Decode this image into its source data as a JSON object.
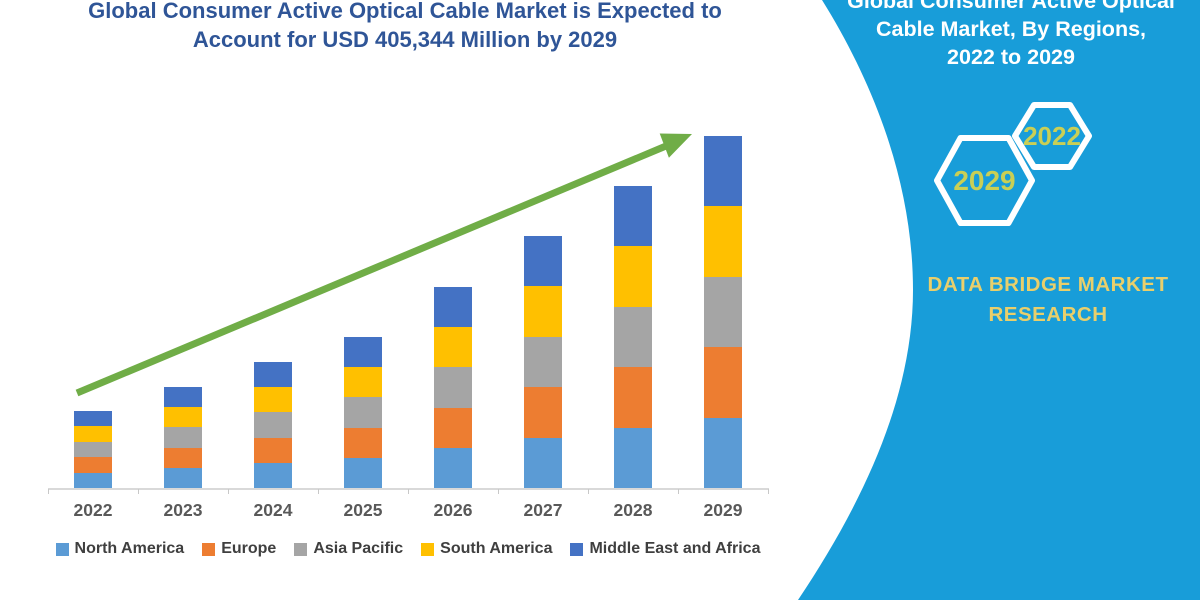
{
  "chart": {
    "title_lines": [
      "Global Consumer Active Optical Cable Market is Expected to",
      "Account for USD 405,344 Million by 2029"
    ]
  },
  "chart_data": {
    "type": "bar",
    "stacked": true,
    "title": "Global Consumer Active Optical Cable Market is Expected to Account for USD 405,344 Million by 2029",
    "categories": [
      "2022",
      "2023",
      "2024",
      "2025",
      "2026",
      "2027",
      "2028",
      "2029"
    ],
    "series": [
      {
        "name": "North America",
        "color": "#5B9BD5",
        "values": [
          17740,
          23260,
          29020,
          34780,
          46280,
          58040,
          69540,
          81069
        ]
      },
      {
        "name": "Europe",
        "color": "#ED7D31",
        "values": [
          17740,
          23260,
          29020,
          34780,
          46280,
          58040,
          69540,
          81069
        ]
      },
      {
        "name": "Asia Pacific",
        "color": "#A5A5A5",
        "values": [
          17740,
          23260,
          29020,
          34780,
          46280,
          58040,
          69540,
          81069
        ]
      },
      {
        "name": "South America",
        "color": "#FFC000",
        "values": [
          17740,
          23260,
          29020,
          34780,
          46280,
          58040,
          69540,
          81069
        ]
      },
      {
        "name": "Middle East and Africa",
        "color": "#4472C4",
        "values": [
          17740,
          23260,
          29020,
          34780,
          46280,
          58040,
          69540,
          81069
        ]
      }
    ],
    "totals": [
      88700,
      116300,
      145100,
      173900,
      231400,
      290200,
      347700,
      405345
    ],
    "units": "USD Million (estimated from bar heights; 2029 total anchored to USD 405,344 Million stated in title)",
    "xlabel": "",
    "ylabel": "",
    "ylim": [
      0,
      405345
    ],
    "grid": false,
    "legend_position": "bottom",
    "annotations": [
      "green growth trend arrow from 2022 bar to 2029 bar top"
    ]
  },
  "panel": {
    "title_lines": [
      "Global Consumer Active Optical",
      "Cable Market, By Regions,",
      "2022 to 2029"
    ],
    "hexagons": [
      {
        "label": "2029"
      },
      {
        "label": "2022"
      }
    ],
    "brand": "DATA BRIDGE MARKET RESEARCH",
    "colors": {
      "background": "#189DD9",
      "title_text": "#FFFFFF",
      "hexagon_outline": "#FFFFFF",
      "hexagon_text": "#C9CF55",
      "brand_text": "#E9CF6B"
    }
  },
  "colors": {
    "chart_title": "#2F5597",
    "arrow": "#70AD47",
    "axis_line": "#D9D9D9",
    "year_labels": "#595959",
    "legend_text": "#3F3F3F"
  }
}
